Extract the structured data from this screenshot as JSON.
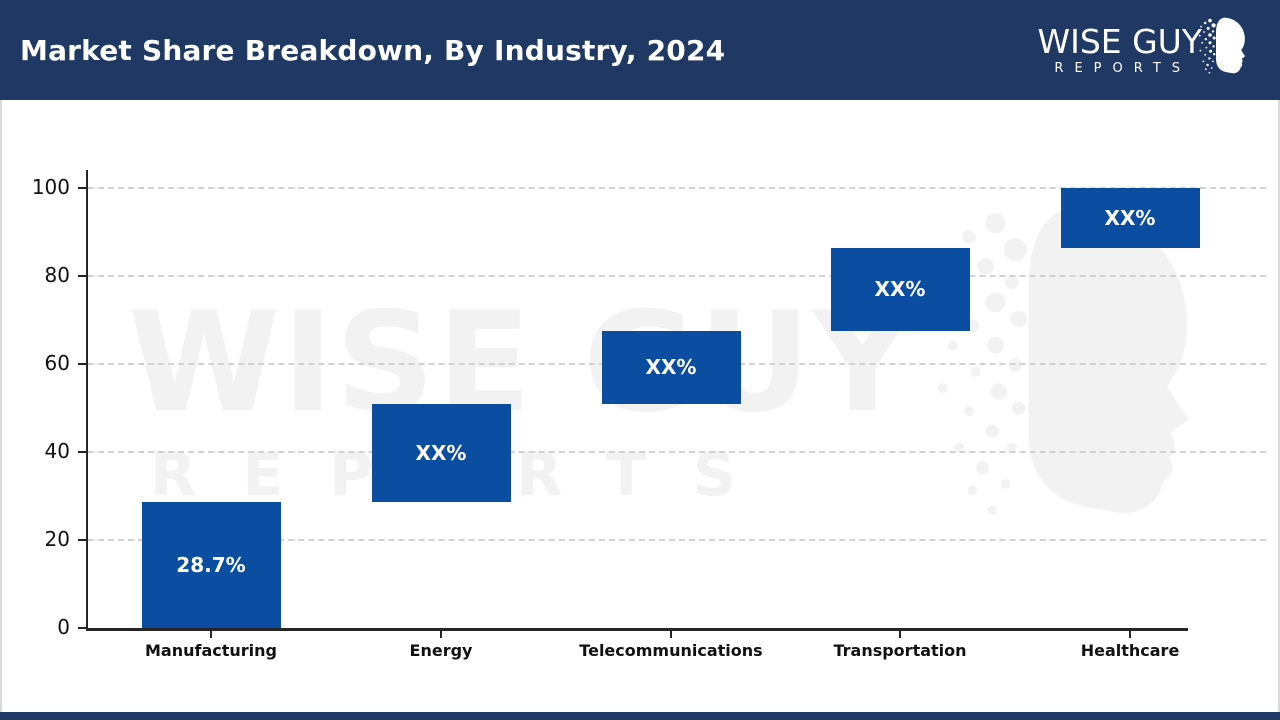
{
  "header": {
    "title": "Market Share Breakdown, By Industry, 2024",
    "logo": {
      "line1": "WISE GUY",
      "line2": "REPORTS"
    }
  },
  "watermark": {
    "line1": "WISE GUY",
    "line2": "REPORTS"
  },
  "colors": {
    "header_bg": "#1f3864",
    "footer_bg": "#1f3864",
    "bar_fill": "#0b4da1",
    "bar_label": "#ffffff",
    "gridline": "#d2d2d2",
    "axis": "#262626",
    "tick_text": "#111111",
    "watermark": "#f2f2f2"
  },
  "chart_data": {
    "type": "bar",
    "subtype": "waterfall",
    "title": "Market Share Breakdown, By Industry, 2024",
    "categories": [
      "Manufacturing",
      "Energy",
      "Telecommunications",
      "Transportation",
      "Healthcare"
    ],
    "segments": [
      {
        "category": "Manufacturing",
        "start": 0,
        "end": 28.7,
        "label": "28.7%"
      },
      {
        "category": "Energy",
        "start": 28.7,
        "end": 51.0,
        "label": "XX%"
      },
      {
        "category": "Telecommunications",
        "start": 51.0,
        "end": 67.5,
        "label": "XX%"
      },
      {
        "category": "Transportation",
        "start": 67.5,
        "end": 86.4,
        "label": "XX%"
      },
      {
        "category": "Healthcare",
        "start": 86.4,
        "end": 100,
        "label": "XX%"
      }
    ],
    "y_ticks": [
      0,
      20,
      40,
      60,
      80,
      100
    ],
    "ylim": [
      0,
      100
    ],
    "grid": "horizontal-dashed",
    "legend": "none"
  }
}
